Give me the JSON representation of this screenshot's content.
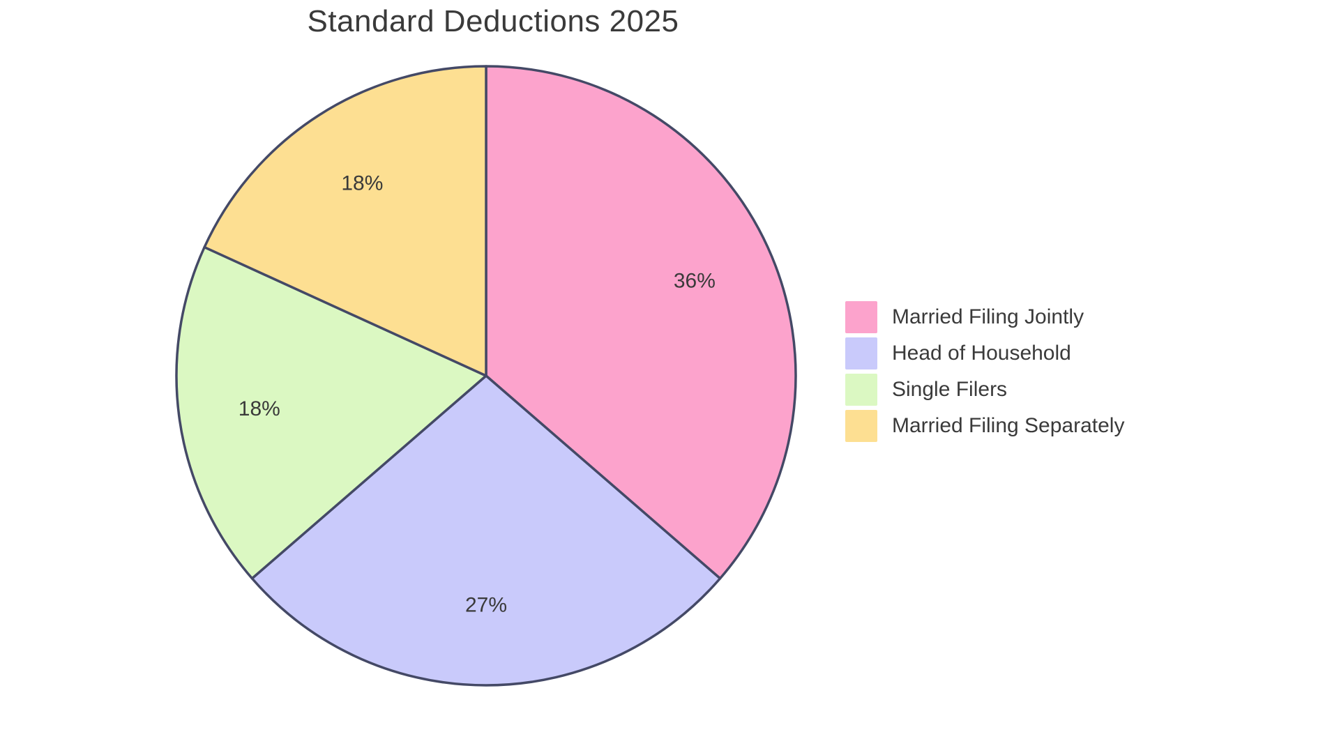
{
  "title": "Standard Deductions 2025",
  "colors": {
    "background": "#ffffff",
    "outline": "#444966",
    "text": "#3a3a3a"
  },
  "chart_data": {
    "type": "pie",
    "title": "Standard Deductions 2025",
    "categories": [
      "Married Filing Jointly",
      "Head of Household",
      "Single Filers",
      "Married Filing Separately"
    ],
    "values": [
      36,
      27,
      18,
      18
    ],
    "slice_labels": [
      "36%",
      "27%",
      "18%",
      "18%"
    ],
    "slice_colors": [
      "#FCA3CC",
      "#C9CAFB",
      "#DBF8C2",
      "#FDDF92"
    ],
    "unit": "%",
    "start_angle": "12-oclock",
    "direction": "clockwise",
    "legend_position": "right",
    "label_distance": 0.74,
    "grid": false
  }
}
